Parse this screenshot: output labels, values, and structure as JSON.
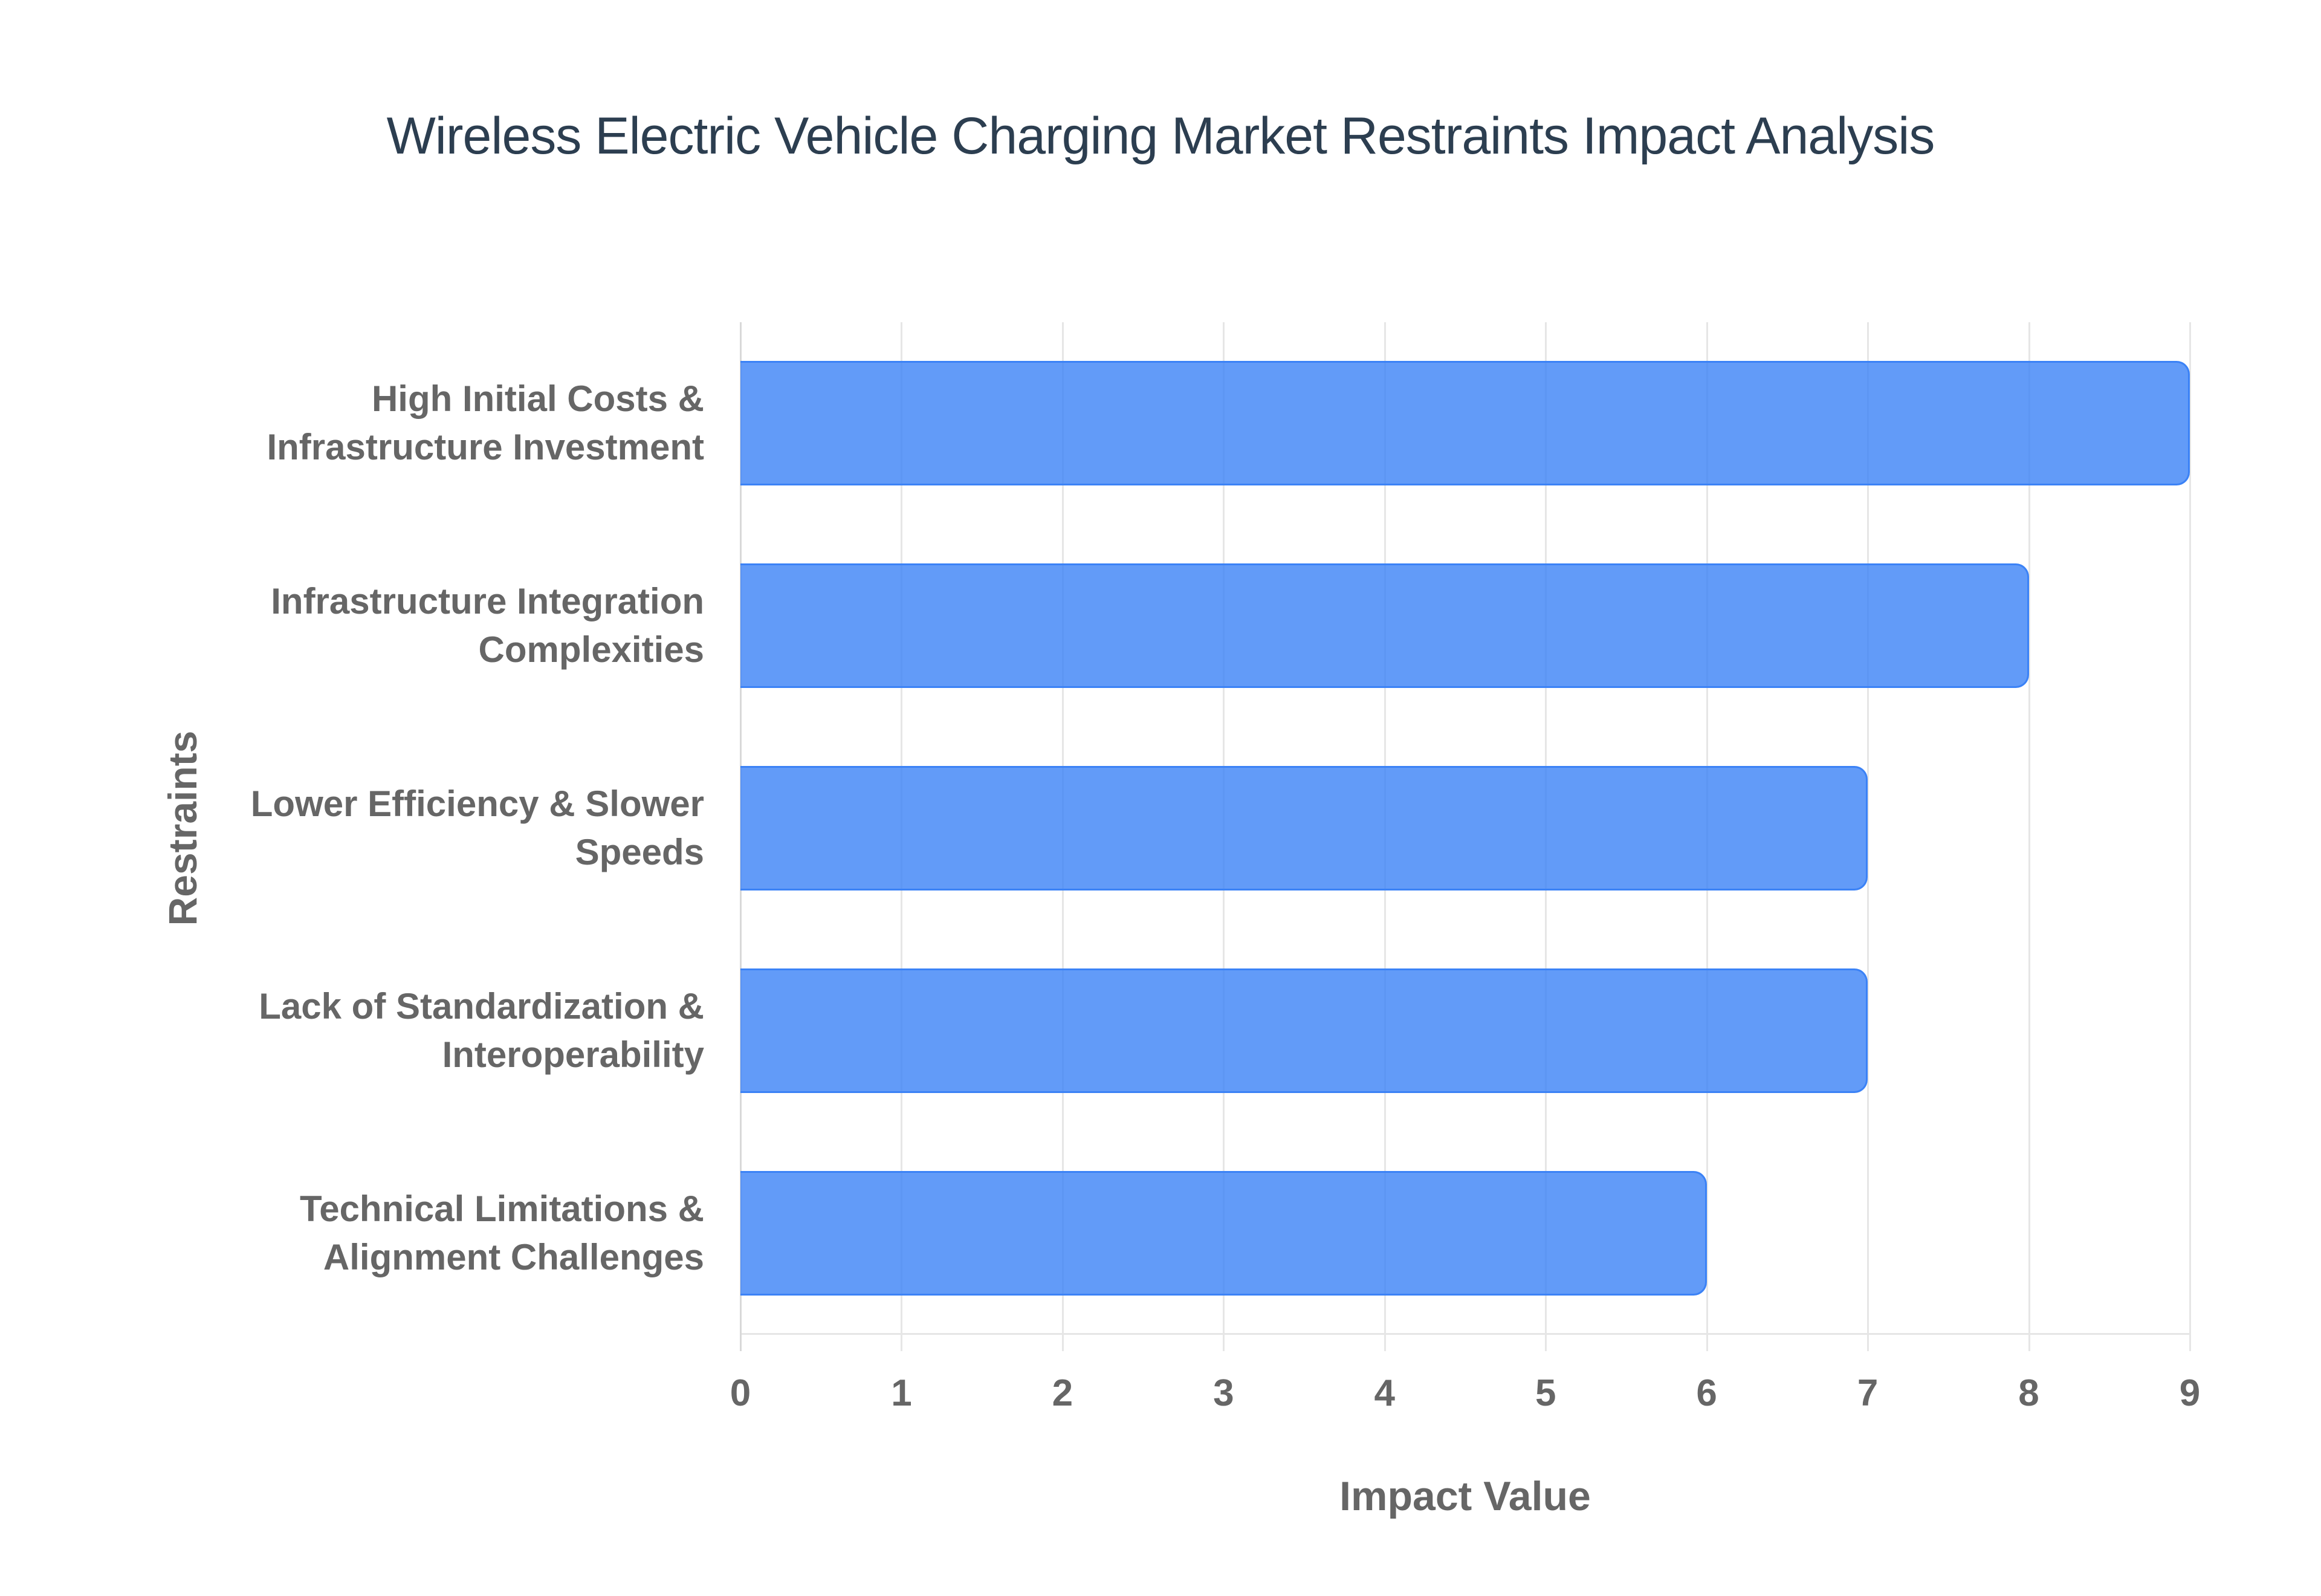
{
  "title": "Wireless Electric Vehicle Charging Market Restraints Impact Analysis",
  "x_axis": {
    "title": "Impact Value",
    "ticks": [
      "0",
      "1",
      "2",
      "3",
      "4",
      "5",
      "6",
      "7",
      "8",
      "9"
    ]
  },
  "y_axis": {
    "title": "Restraints"
  },
  "categories": [
    {
      "lines": [
        "High Initial Costs &",
        "Infrastructure Investment"
      ],
      "value": 9
    },
    {
      "lines": [
        "Infrastructure Integration",
        "Complexities"
      ],
      "value": 8
    },
    {
      "lines": [
        "Lower Efficiency & Slower",
        "Speeds"
      ],
      "value": 7
    },
    {
      "lines": [
        "Lack of Standardization &",
        "Interoperability"
      ],
      "value": 7
    },
    {
      "lines": [
        "Technical Limitations &",
        "Alignment Challenges"
      ],
      "value": 6
    }
  ],
  "colors": {
    "bar_fill": "rgba(59,130,246,0.8)",
    "bar_border": "#3b82f6",
    "title": "#2c3e50",
    "axis_text": "#666666",
    "grid": "#e6e6e6"
  },
  "chart_data": {
    "type": "bar",
    "orientation": "horizontal",
    "title": "Wireless Electric Vehicle Charging Market Restraints Impact Analysis",
    "categories": [
      "High Initial Costs & Infrastructure Investment",
      "Infrastructure Integration Complexities",
      "Lower Efficiency & Slower Speeds",
      "Lack of Standardization & Interoperability",
      "Technical Limitations & Alignment Challenges"
    ],
    "values": [
      9,
      8,
      7,
      7,
      6
    ],
    "xlabel": "Impact Value",
    "ylabel": "Restraints",
    "xlim": [
      0,
      9
    ],
    "xticks": [
      0,
      1,
      2,
      3,
      4,
      5,
      6,
      7,
      8,
      9
    ],
    "grid": true,
    "legend": "none"
  }
}
